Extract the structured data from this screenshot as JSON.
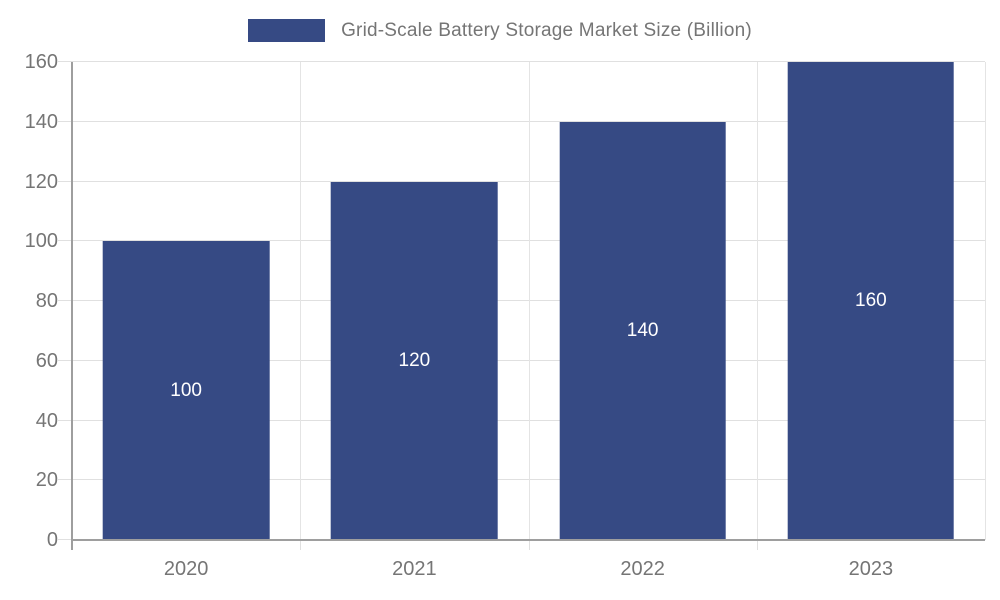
{
  "legend": {
    "label": "Grid-Scale Battery Storage Market Size (Billion)"
  },
  "chart_data": {
    "type": "bar",
    "title": "Grid-Scale Battery Storage Market Size (Billion)",
    "legend_entries": [
      "Grid-Scale Battery Storage Market Size (Billion)"
    ],
    "legend_position": "top",
    "categories": [
      "2020",
      "2021",
      "2022",
      "2023"
    ],
    "values": [
      100,
      120,
      140,
      160
    ],
    "data_labels": [
      "100",
      "120",
      "140",
      "160"
    ],
    "xlabel": "",
    "ylabel": "",
    "ylim": [
      0,
      160
    ],
    "yticks": [
      0,
      20,
      40,
      60,
      80,
      100,
      120,
      140,
      160
    ],
    "grid": true,
    "colors": {
      "bar": "#364A84",
      "axis_label": "#757575",
      "data_label": "#FFFFFF",
      "gridline": "#E0E0E0",
      "axis_line": "#9E9E9E",
      "background": "#FFFFFF"
    }
  }
}
